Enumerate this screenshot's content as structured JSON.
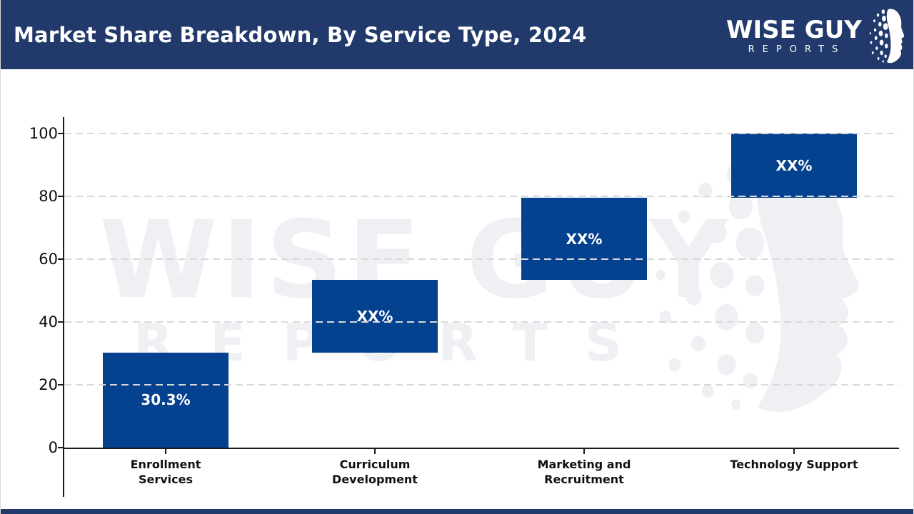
{
  "header": {
    "title": "Market Share Breakdown, By Service Type, 2024",
    "logo": {
      "brand": "WISE GUY",
      "sub": "REPORTS"
    }
  },
  "watermark": {
    "brand": "WISE GUY",
    "sub": "REPORTS"
  },
  "chart_data": {
    "type": "bar",
    "variant": "waterfall",
    "title": "Market Share Breakdown, By Service Type, 2024",
    "xlabel": "",
    "ylabel": "",
    "ylim": [
      0,
      100
    ],
    "yticks": [
      0,
      20,
      40,
      60,
      80,
      100
    ],
    "grid": "horizontal-dashed",
    "legend": "none",
    "bar_color": "#04418f",
    "categories": [
      "Enrollment Services",
      "Curriculum Development",
      "Marketing and Recruitment",
      "Technology Support"
    ],
    "segments": [
      {
        "category": "Enrollment Services",
        "label_lines": [
          "Enrollment",
          "Services"
        ],
        "start": 0,
        "end": 30.3,
        "value": 30.3,
        "data_label": "30.3%"
      },
      {
        "category": "Curriculum Development",
        "label_lines": [
          "Curriculum",
          "Development"
        ],
        "start": 30.3,
        "end": 53.3,
        "value": 23.0,
        "data_label": "XX%"
      },
      {
        "category": "Marketing and Recruitment",
        "label_lines": [
          "Marketing and",
          "Recruitment"
        ],
        "start": 53.3,
        "end": 79.5,
        "value": 26.2,
        "data_label": "XX%"
      },
      {
        "category": "Technology Support",
        "label_lines": [
          "Technology Support"
        ],
        "start": 79.5,
        "end": 100,
        "value": 20.5,
        "data_label": "XX%"
      }
    ]
  },
  "colors": {
    "header_bg": "#213a6b",
    "footer_bg": "#213a6b",
    "bar": "#04418f",
    "watermark": "#eff0f3",
    "gridline": "#d9d9d9",
    "axis": "#1a1a1a",
    "bar_label_text": "#ffffff"
  }
}
